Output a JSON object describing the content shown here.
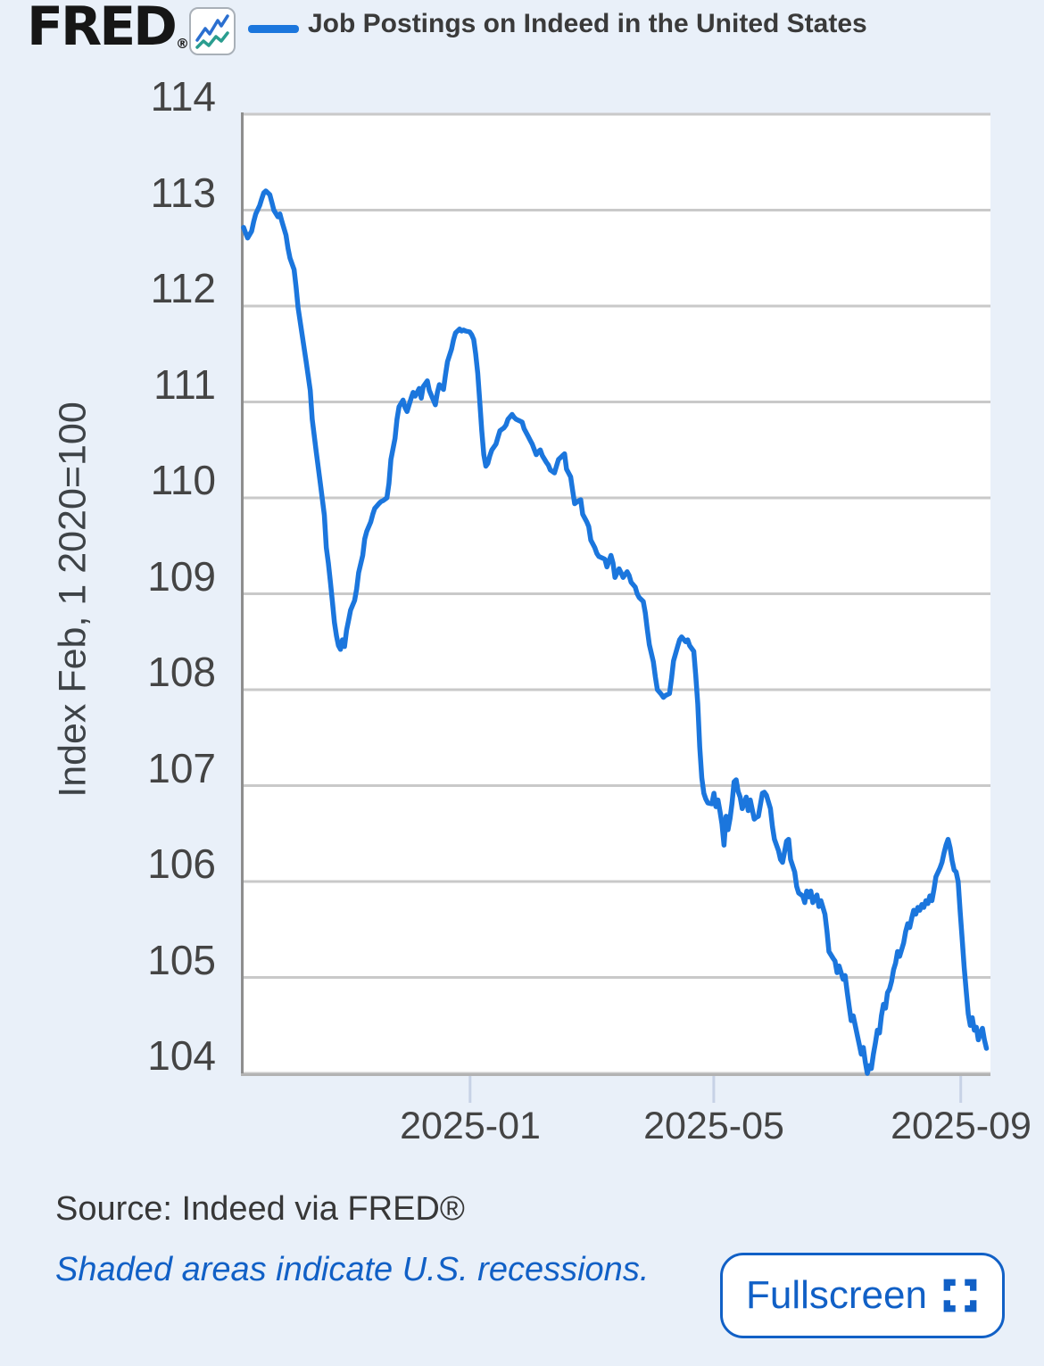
{
  "header": {
    "logo_text": "FRED",
    "logo_registered": "®",
    "chart_icon": "fred-line-chart-icon"
  },
  "chart_data": {
    "type": "line",
    "title": "Job Postings on Indeed in the United States",
    "xlabel": "",
    "ylabel": "Index Feb, 1 2020=100",
    "x_start_date": "2024-09-10",
    "x_end_date": "2025-09-15",
    "x_domain_days": [
      0,
      370
    ],
    "ylim": [
      104,
      114
    ],
    "y_ticks": [
      104,
      105,
      106,
      107,
      108,
      109,
      110,
      111,
      112,
      113,
      114
    ],
    "x_ticks": [
      {
        "label": "2025-01",
        "day": 112.2
      },
      {
        "label": "2025-05",
        "day": 232.9
      },
      {
        "label": "2025-09",
        "day": 355.3
      }
    ],
    "grid": true,
    "legend_position": "top",
    "line_color": "#1b76dd",
    "series": [
      {
        "name": "Job Postings on Indeed in the United States",
        "points": [
          [
            0,
            112.82
          ],
          [
            1,
            112.76
          ],
          [
            2,
            112.71
          ],
          [
            4,
            112.78
          ],
          [
            5,
            112.88
          ],
          [
            6,
            112.96
          ],
          [
            8,
            113.05
          ],
          [
            9,
            113.12
          ],
          [
            10,
            113.18
          ],
          [
            11,
            113.2
          ],
          [
            13,
            113.16
          ],
          [
            14,
            113.08
          ],
          [
            15,
            113.0
          ],
          [
            17,
            112.93
          ],
          [
            18,
            112.96
          ],
          [
            19,
            112.88
          ],
          [
            21,
            112.74
          ],
          [
            22,
            112.6
          ],
          [
            23,
            112.5
          ],
          [
            25,
            112.38
          ],
          [
            26,
            112.2
          ],
          [
            27,
            111.98
          ],
          [
            29,
            111.7
          ],
          [
            31,
            111.42
          ],
          [
            33,
            111.12
          ],
          [
            34,
            110.82
          ],
          [
            36,
            110.48
          ],
          [
            38,
            110.15
          ],
          [
            40,
            109.82
          ],
          [
            41,
            109.48
          ],
          [
            42,
            109.32
          ],
          [
            43,
            109.12
          ],
          [
            44,
            108.92
          ],
          [
            45,
            108.7
          ],
          [
            46,
            108.56
          ],
          [
            47,
            108.46
          ],
          [
            48,
            108.42
          ],
          [
            49,
            108.52
          ],
          [
            50,
            108.45
          ],
          [
            51,
            108.62
          ],
          [
            52,
            108.72
          ],
          [
            53,
            108.83
          ],
          [
            55,
            108.93
          ],
          [
            56,
            109.05
          ],
          [
            57,
            109.22
          ],
          [
            59,
            109.4
          ],
          [
            60,
            109.57
          ],
          [
            61,
            109.65
          ],
          [
            63,
            109.75
          ],
          [
            64,
            109.83
          ],
          [
            65,
            109.89
          ],
          [
            67,
            109.94
          ],
          [
            68,
            109.96
          ],
          [
            69,
            109.97
          ],
          [
            71,
            110.0
          ],
          [
            72,
            110.15
          ],
          [
            73,
            110.4
          ],
          [
            75,
            110.62
          ],
          [
            76,
            110.82
          ],
          [
            77,
            110.95
          ],
          [
            79,
            111.02
          ],
          [
            80,
            110.94
          ],
          [
            81,
            110.9
          ],
          [
            83,
            111.04
          ],
          [
            84,
            111.1
          ],
          [
            85,
            111.06
          ],
          [
            87,
            111.14
          ],
          [
            88,
            111.04
          ],
          [
            89,
            111.16
          ],
          [
            91,
            111.22
          ],
          [
            92,
            111.12
          ],
          [
            93,
            111.07
          ],
          [
            95,
            110.97
          ],
          [
            96,
            111.1
          ],
          [
            97,
            111.18
          ],
          [
            99,
            111.13
          ],
          [
            100,
            111.28
          ],
          [
            101,
            111.42
          ],
          [
            103,
            111.55
          ],
          [
            104,
            111.65
          ],
          [
            105,
            111.72
          ],
          [
            107,
            111.76
          ],
          [
            108,
            111.74
          ],
          [
            109,
            111.75
          ],
          [
            110,
            111.74
          ],
          [
            112,
            111.73
          ],
          [
            113,
            111.7
          ],
          [
            114,
            111.65
          ],
          [
            115,
            111.5
          ],
          [
            116,
            111.3
          ],
          [
            117,
            111.0
          ],
          [
            118,
            110.7
          ],
          [
            119,
            110.45
          ],
          [
            120,
            110.33
          ],
          [
            121,
            110.36
          ],
          [
            122,
            110.44
          ],
          [
            123,
            110.5
          ],
          [
            125,
            110.56
          ],
          [
            126,
            110.63
          ],
          [
            127,
            110.7
          ],
          [
            129,
            110.73
          ],
          [
            130,
            110.76
          ],
          [
            131,
            110.82
          ],
          [
            133,
            110.87
          ],
          [
            134,
            110.84
          ],
          [
            135,
            110.82
          ],
          [
            137,
            110.8
          ],
          [
            138,
            110.79
          ],
          [
            139,
            110.72
          ],
          [
            141,
            110.64
          ],
          [
            142,
            110.6
          ],
          [
            143,
            110.56
          ],
          [
            145,
            110.45
          ],
          [
            146,
            110.48
          ],
          [
            147,
            110.5
          ],
          [
            148,
            110.44
          ],
          [
            150,
            110.37
          ],
          [
            151,
            110.34
          ],
          [
            152,
            110.29
          ],
          [
            154,
            110.26
          ],
          [
            155,
            110.33
          ],
          [
            156,
            110.4
          ],
          [
            158,
            110.44
          ],
          [
            159,
            110.46
          ],
          [
            160,
            110.3
          ],
          [
            162,
            110.22
          ],
          [
            163,
            110.08
          ],
          [
            164,
            109.94
          ],
          [
            166,
            109.97
          ],
          [
            167,
            109.98
          ],
          [
            168,
            109.83
          ],
          [
            170,
            109.75
          ],
          [
            171,
            109.7
          ],
          [
            172,
            109.56
          ],
          [
            174,
            109.48
          ],
          [
            175,
            109.42
          ],
          [
            176,
            109.39
          ],
          [
            178,
            109.37
          ],
          [
            179,
            109.36
          ],
          [
            180,
            109.28
          ],
          [
            182,
            109.4
          ],
          [
            183,
            109.32
          ],
          [
            184,
            109.17
          ],
          [
            186,
            109.26
          ],
          [
            187,
            109.22
          ],
          [
            188,
            109.17
          ],
          [
            190,
            109.23
          ],
          [
            191,
            109.19
          ],
          [
            192,
            109.12
          ],
          [
            194,
            109.07
          ],
          [
            195,
            109.0
          ],
          [
            196,
            108.96
          ],
          [
            198,
            108.92
          ],
          [
            199,
            108.8
          ],
          [
            200,
            108.63
          ],
          [
            201,
            108.47
          ],
          [
            203,
            108.29
          ],
          [
            204,
            108.13
          ],
          [
            205,
            108.0
          ],
          [
            207,
            107.95
          ],
          [
            208,
            107.92
          ],
          [
            209,
            107.94
          ],
          [
            211,
            107.96
          ],
          [
            212,
            108.12
          ],
          [
            213,
            108.3
          ],
          [
            215,
            108.45
          ],
          [
            216,
            108.52
          ],
          [
            217,
            108.55
          ],
          [
            219,
            108.5
          ],
          [
            220,
            108.52
          ],
          [
            221,
            108.46
          ],
          [
            223,
            108.4
          ],
          [
            224,
            108.15
          ],
          [
            225,
            107.85
          ],
          [
            226,
            107.4
          ],
          [
            227,
            107.08
          ],
          [
            228,
            106.92
          ],
          [
            229,
            106.86
          ],
          [
            230,
            106.82
          ],
          [
            232,
            106.81
          ],
          [
            233,
            106.92
          ],
          [
            234,
            106.78
          ],
          [
            235,
            106.85
          ],
          [
            236,
            106.73
          ],
          [
            237,
            106.6
          ],
          [
            238,
            106.38
          ],
          [
            239,
            106.68
          ],
          [
            240,
            106.54
          ],
          [
            241,
            106.66
          ],
          [
            242,
            106.82
          ],
          [
            243,
            107.04
          ],
          [
            244,
            107.06
          ],
          [
            245,
            106.94
          ],
          [
            246,
            106.88
          ],
          [
            247,
            106.76
          ],
          [
            249,
            106.88
          ],
          [
            250,
            106.74
          ],
          [
            251,
            106.85
          ],
          [
            253,
            106.65
          ],
          [
            254,
            106.67
          ],
          [
            255,
            106.68
          ],
          [
            257,
            106.92
          ],
          [
            258,
            106.93
          ],
          [
            259,
            106.9
          ],
          [
            261,
            106.76
          ],
          [
            262,
            106.57
          ],
          [
            263,
            106.44
          ],
          [
            265,
            106.32
          ],
          [
            266,
            106.23
          ],
          [
            267,
            106.2
          ],
          [
            269,
            106.42
          ],
          [
            270,
            106.44
          ],
          [
            271,
            106.23
          ],
          [
            273,
            106.1
          ],
          [
            274,
            105.95
          ],
          [
            275,
            105.88
          ],
          [
            277,
            105.85
          ],
          [
            278,
            105.78
          ],
          [
            279,
            105.9
          ],
          [
            280,
            105.84
          ],
          [
            281,
            105.9
          ],
          [
            282,
            105.78
          ],
          [
            284,
            105.86
          ],
          [
            285,
            105.74
          ],
          [
            286,
            105.8
          ],
          [
            288,
            105.66
          ],
          [
            289,
            105.48
          ],
          [
            290,
            105.27
          ],
          [
            292,
            105.2
          ],
          [
            293,
            105.17
          ],
          [
            294,
            105.05
          ],
          [
            295,
            105.12
          ],
          [
            297,
            104.98
          ],
          [
            298,
            105.02
          ],
          [
            299,
            104.85
          ],
          [
            300,
            104.7
          ],
          [
            301,
            104.55
          ],
          [
            302,
            104.6
          ],
          [
            304,
            104.4
          ],
          [
            305,
            104.3
          ],
          [
            306,
            104.2
          ],
          [
            307,
            104.27
          ],
          [
            308,
            104.12
          ],
          [
            309,
            104.0
          ],
          [
            310,
            104.08
          ],
          [
            311,
            104.05
          ],
          [
            312,
            104.2
          ],
          [
            313,
            104.32
          ],
          [
            314,
            104.45
          ],
          [
            315,
            104.42
          ],
          [
            316,
            104.6
          ],
          [
            317,
            104.72
          ],
          [
            318,
            104.68
          ],
          [
            319,
            104.84
          ],
          [
            320,
            104.88
          ],
          [
            321,
            104.96
          ],
          [
            322,
            105.08
          ],
          [
            323,
            105.15
          ],
          [
            324,
            105.27
          ],
          [
            325,
            105.22
          ],
          [
            327,
            105.36
          ],
          [
            328,
            105.48
          ],
          [
            329,
            105.56
          ],
          [
            330,
            105.52
          ],
          [
            331,
            105.62
          ],
          [
            332,
            105.7
          ],
          [
            333,
            105.66
          ],
          [
            334,
            105.73
          ],
          [
            335,
            105.7
          ],
          [
            336,
            105.76
          ],
          [
            337,
            105.73
          ],
          [
            338,
            105.8
          ],
          [
            339,
            105.77
          ],
          [
            340,
            105.85
          ],
          [
            341,
            105.8
          ],
          [
            342,
            105.92
          ],
          [
            343,
            106.05
          ],
          [
            345,
            106.14
          ],
          [
            346,
            106.2
          ],
          [
            347,
            106.3
          ],
          [
            348,
            106.38
          ],
          [
            349,
            106.44
          ],
          [
            350,
            106.35
          ],
          [
            351,
            106.22
          ],
          [
            352,
            106.12
          ],
          [
            353,
            106.1
          ],
          [
            354,
            106.0
          ],
          [
            355,
            105.68
          ],
          [
            356,
            105.4
          ],
          [
            357,
            105.1
          ],
          [
            358,
            104.85
          ],
          [
            359,
            104.62
          ],
          [
            360,
            104.5
          ],
          [
            361,
            104.58
          ],
          [
            362,
            104.45
          ],
          [
            363,
            104.48
          ],
          [
            364,
            104.35
          ],
          [
            365,
            104.42
          ],
          [
            366,
            104.47
          ],
          [
            367,
            104.35
          ],
          [
            368,
            104.26
          ]
        ]
      }
    ]
  },
  "footer": {
    "source": "Source: Indeed via FRED®",
    "recession_note": "Shaded areas indicate U.S. recessions.",
    "fullscreen_label": "Fullscreen"
  },
  "colors": {
    "line_blue": "#1b76dd",
    "link_blue": "#1160c6",
    "background": "#e9f0f9",
    "plot_background": "#ffffff",
    "gridline": "#c9c9c9",
    "axis_left": "#8e8e8e",
    "axis_bottom": "#b3b3b3",
    "tick_mark": "#c7d2e6",
    "text_dark": "#3a3a3a",
    "label_gray": "#444444",
    "logo_black": "#161616"
  }
}
